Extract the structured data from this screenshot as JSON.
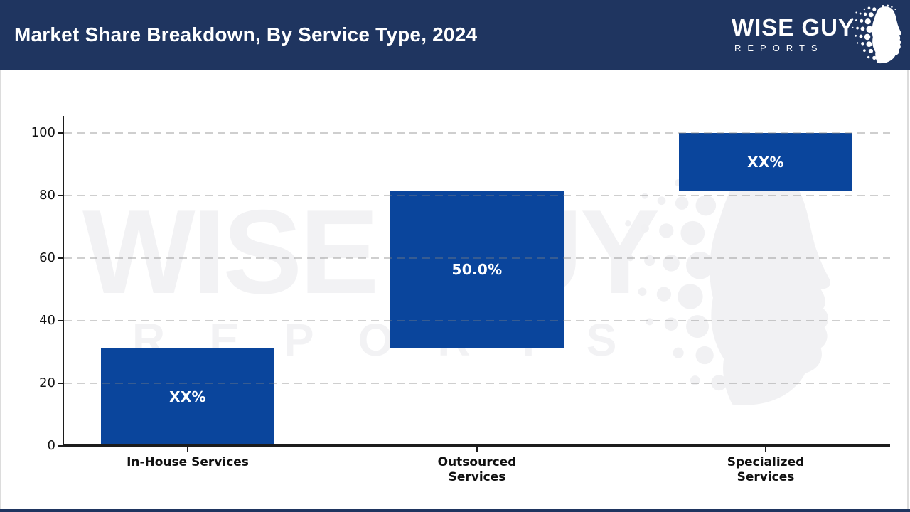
{
  "header": {
    "title": "Market Share Breakdown, By Service Type, 2024",
    "logo": {
      "name": "WISE GUY",
      "subtitle": "REPORTS",
      "icon": "dot-face-profile-icon"
    }
  },
  "watermark": {
    "line1": "WISE GUY",
    "line2": "REPORTS",
    "icon": "dot-face-profile-icon"
  },
  "chart_data": {
    "type": "bar",
    "subtype": "floating-stacked-percentage",
    "title": "Market Share Breakdown, By Service Type, 2024",
    "categories": [
      "In-House Services",
      "Outsourced\nServices",
      "Specialized\nServices"
    ],
    "segments": [
      {
        "category": "In-House Services",
        "start": 0,
        "end": 31.4,
        "value_label": "XX%"
      },
      {
        "category": "Outsourced Services",
        "start": 31.4,
        "end": 81.4,
        "value_label": "50.0%"
      },
      {
        "category": "Specialized Services",
        "start": 81.4,
        "end": 100,
        "value_label": "XX%"
      }
    ],
    "yticks": [
      0,
      20,
      40,
      60,
      80,
      100
    ],
    "ylim": [
      0,
      105
    ],
    "xlabel": "",
    "ylabel": "",
    "grid": "horizontal-dashed",
    "legend": "none",
    "bar_color": "#0a459c",
    "label_color": "#ffffff"
  },
  "colors": {
    "header_bg": "#1f3560",
    "footer_bg": "#1f3560",
    "bar": "#0a459c",
    "watermark": "#f2f2f4"
  }
}
